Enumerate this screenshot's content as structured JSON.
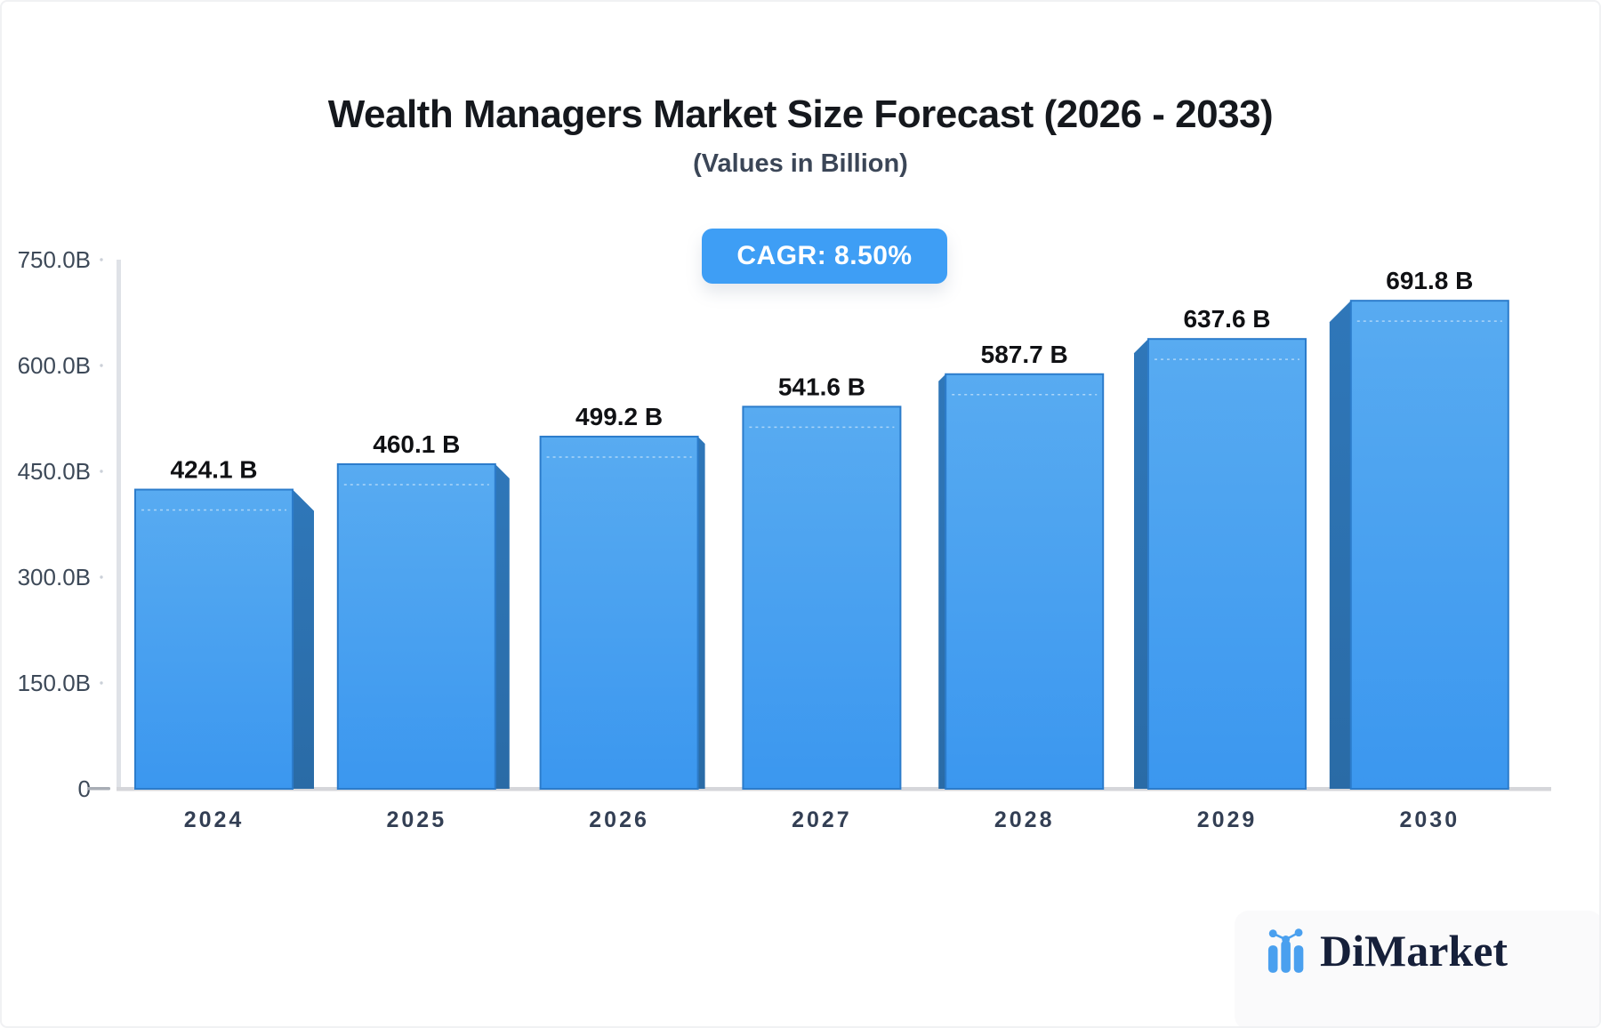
{
  "chart_data": {
    "type": "bar",
    "title": "Wealth Managers Market Size Forecast (2026 - 2033)",
    "subtitle": "(Values in Billion)",
    "badge_label": "CAGR: 8.50%",
    "categories": [
      "2024",
      "2025",
      "2026",
      "2027",
      "2028",
      "2029",
      "2030"
    ],
    "values": [
      424.1,
      460.1,
      499.2,
      541.6,
      587.7,
      637.6,
      691.8
    ],
    "value_labels": [
      "424.1 B",
      "460.1 B",
      "499.2 B",
      "541.6 B",
      "587.7 B",
      "637.6 B",
      "691.8 B"
    ],
    "value_suffix": " B",
    "y_axis": {
      "ticks": [
        0,
        150,
        300,
        450,
        600,
        750
      ],
      "tick_labels": [
        "0",
        "150.0B",
        "300.0B",
        "450.0B",
        "600.0B",
        "750.0B"
      ],
      "ylim": [
        0,
        750
      ]
    },
    "grid": false,
    "legend": null,
    "colors": {
      "bar_face_top": "#58ABF1",
      "bar_face_bottom": "#3B97EF",
      "bar_side_top": "#2F77B9",
      "bar_side_bottom": "#2A6BA6",
      "bar_border": "#2C7CCB",
      "badge_bg": "#3E9EF5",
      "axis_line": "#DFE2E7",
      "baseline": "#D5D6DA",
      "y_label_color": "#3D4958",
      "x_label_color": "#333F54",
      "value_label_color": "#101114"
    }
  },
  "logo": {
    "icon": "bar-chart-logo-icon",
    "text": "DiMarket",
    "text_color": "#16203A",
    "icon_color": "#4AA0EF"
  }
}
